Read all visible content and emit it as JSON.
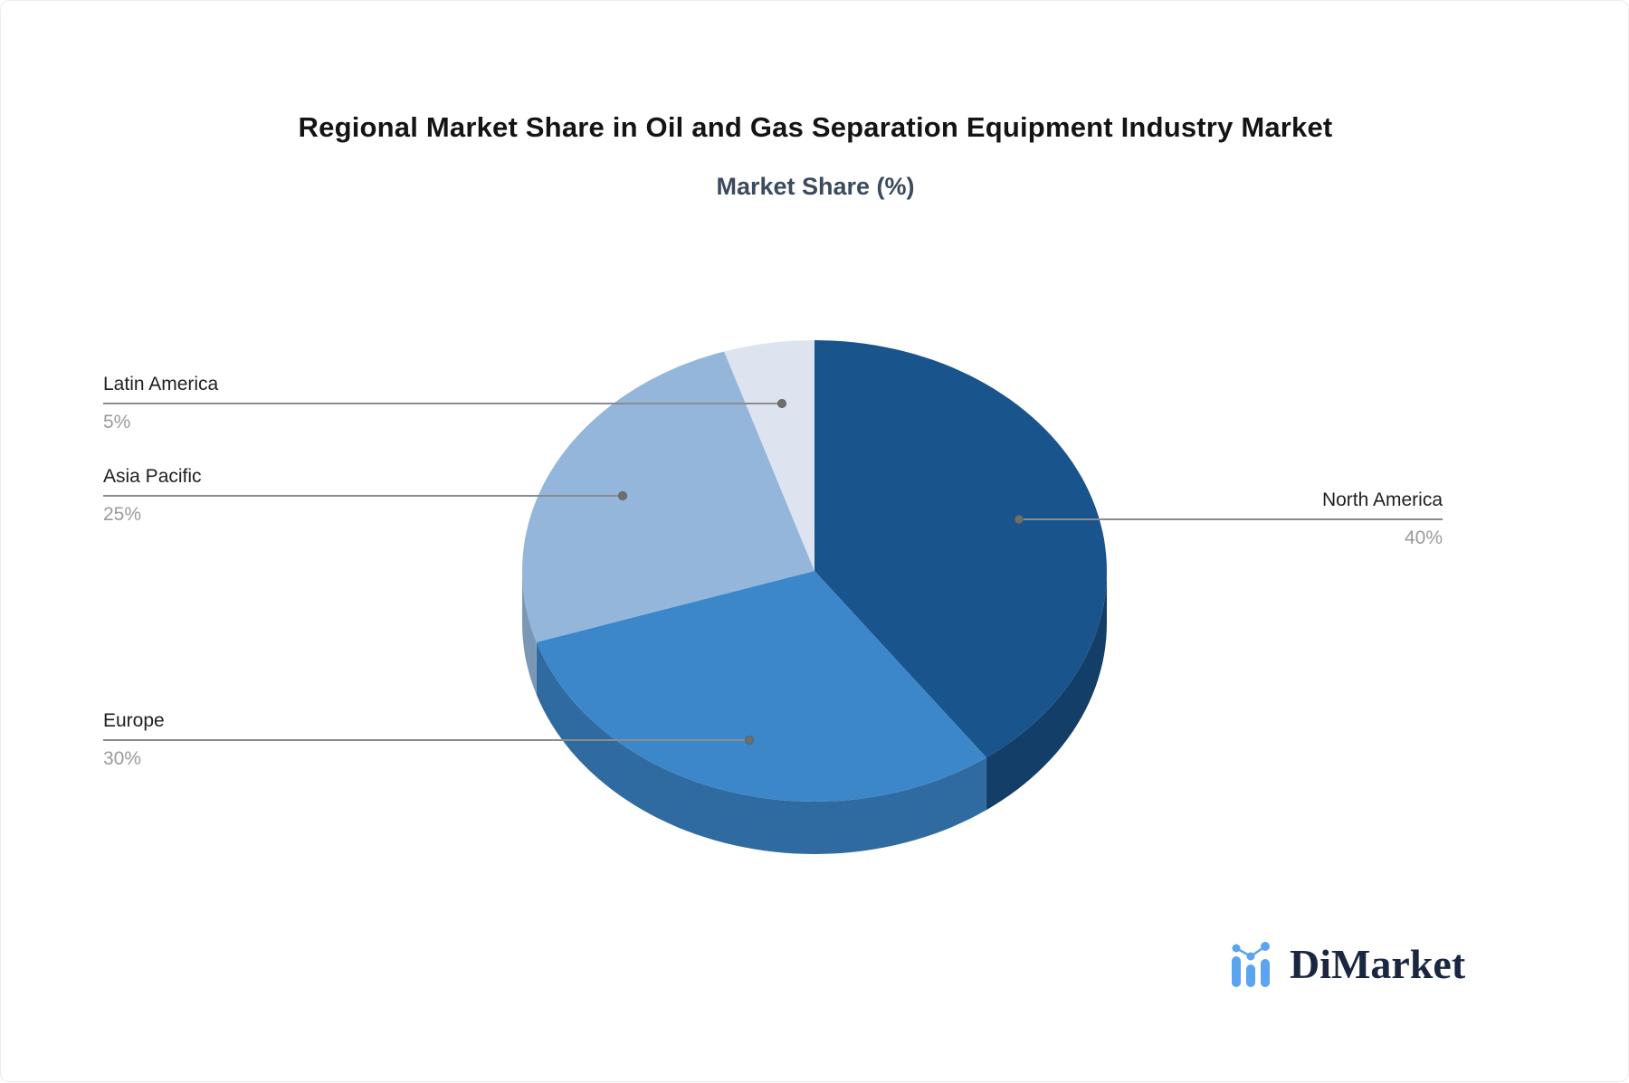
{
  "chart_data": {
    "type": "pie",
    "style": "3d",
    "title": "Regional Market Share in Oil and Gas Separation Equipment Industry Market",
    "subtitle": "Market Share (%)",
    "unit": "%",
    "start_angle_deg": 0,
    "direction": "clockwise",
    "legend_position": "callout-labels",
    "segments": [
      {
        "label": "North America",
        "value": 40,
        "pct_text": "40%",
        "color": "#19558C",
        "side_color": "#123E68"
      },
      {
        "label": "Europe",
        "value": 30,
        "pct_text": "30%",
        "color": "#3C87CA",
        "side_color": "#2F6BA0"
      },
      {
        "label": "Asia Pacific",
        "value": 25,
        "pct_text": "25%",
        "color": "#94B6DA",
        "side_color": "#7A97B5"
      },
      {
        "label": "Latin America",
        "value": 5,
        "pct_text": "5%",
        "color": "#DDE4F0",
        "side_color": "#C3CDDD"
      }
    ]
  },
  "branding": {
    "name": "DiMarket",
    "icon": "bar-line-chart-icon",
    "icon_color": "#5BA4EF",
    "text_color": "#1B2740"
  }
}
